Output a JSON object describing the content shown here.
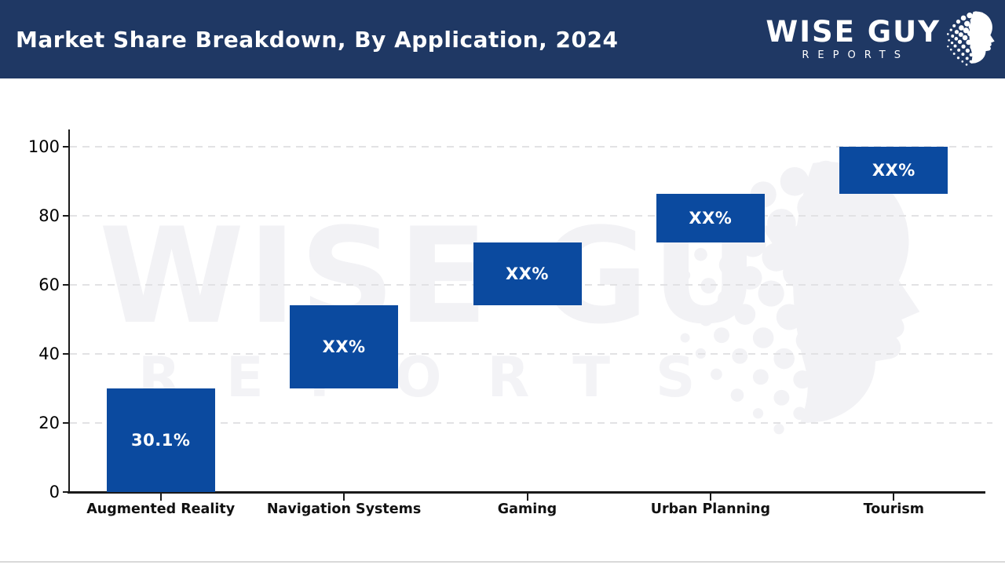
{
  "header": {
    "title": "Market Share Breakdown, By Application, 2024"
  },
  "logo": {
    "name": "WISE GUY",
    "subtitle": "REPORTS"
  },
  "watermark": {
    "line1": "WISE GUY",
    "line2": "REPORTS"
  },
  "colors": {
    "header_bg": "#1f3864",
    "bar_blue": "#0b4a9f",
    "grid_gray": "#e2e2e4",
    "axis_black": "#1a1a1a",
    "watermark_gray": "#f2f2f5",
    "footer_line_gray": "#d9d9d9"
  },
  "chart_data": {
    "type": "bar",
    "subtype": "waterfall",
    "title": "Market Share Breakdown, By Application, 2024",
    "categories": [
      "Augmented Reality",
      "Navigation Systems",
      "Gaming",
      "Urban Planning",
      "Tourism"
    ],
    "segments": [
      {
        "category": "Augmented Reality",
        "start": 0,
        "end": 30.1,
        "value": 30.1,
        "label": "30.1%"
      },
      {
        "category": "Navigation Systems",
        "start": 30.1,
        "end": 54.2,
        "value": 24.1,
        "label": "XX%"
      },
      {
        "category": "Gaming",
        "start": 54.2,
        "end": 72.2,
        "value": 18.0,
        "label": "XX%"
      },
      {
        "category": "Urban Planning",
        "start": 72.2,
        "end": 86.3,
        "value": 14.1,
        "label": "XX%"
      },
      {
        "category": "Tourism",
        "start": 86.3,
        "end": 100,
        "value": 13.7,
        "label": "XX%"
      }
    ],
    "xlabel": "",
    "ylabel": "",
    "yticks": [
      0,
      20,
      40,
      60,
      80,
      100
    ],
    "ylim": [
      0,
      105
    ],
    "grid": "dashed-horizontal",
    "legend": false,
    "bar_color": "#0b4a9f",
    "bar_label_color": "#ffffff"
  }
}
